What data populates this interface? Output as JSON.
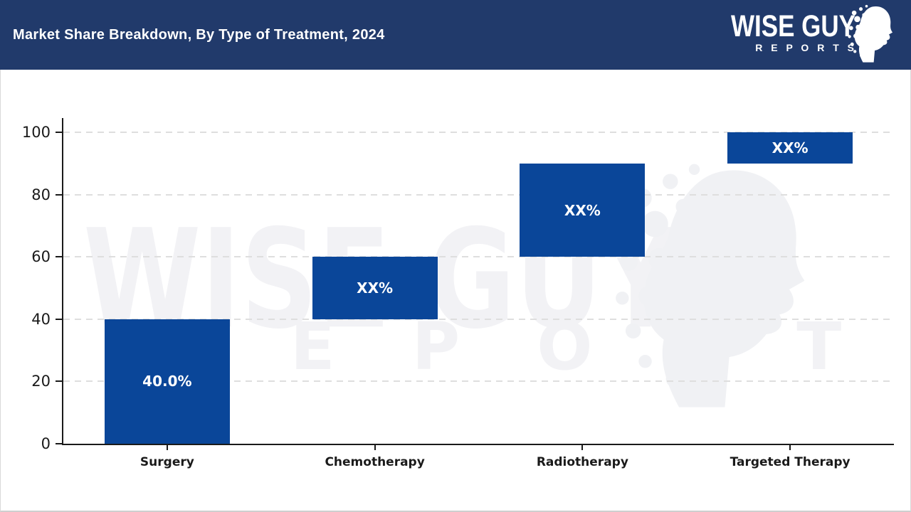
{
  "header": {
    "title": "Market Share Breakdown, By Type of Treatment, 2024",
    "logo": {
      "line1": "WISE GUY",
      "line2": "R E P O R T S"
    }
  },
  "watermark": {
    "line1": "WISE GUY",
    "line2": "R E P O R T S"
  },
  "chart_data": {
    "type": "bar",
    "subtype": "waterfall-stacked-range",
    "title": "Market Share Breakdown, By Type of Treatment, 2024",
    "categories": [
      "Surgery",
      "Chemotherapy",
      "Radiotherapy",
      "Targeted Therapy"
    ],
    "segments": [
      {
        "category": "Surgery",
        "start": 0,
        "end": 40,
        "value": 40,
        "label": "40.0%"
      },
      {
        "category": "Chemotherapy",
        "start": 40,
        "end": 60,
        "value": 20,
        "label": "XX%"
      },
      {
        "category": "Radiotherapy",
        "start": 60,
        "end": 90,
        "value": 30,
        "label": "XX%"
      },
      {
        "category": "Targeted Therapy",
        "start": 90,
        "end": 100,
        "value": 10,
        "label": "XX%"
      }
    ],
    "yticks": [
      0,
      20,
      40,
      60,
      80,
      100
    ],
    "ylim": [
      0,
      100
    ],
    "xlabel": "",
    "ylabel": "",
    "grid": "horizontal-dashed",
    "legend": "none"
  },
  "colors": {
    "header_navy": "#213a6b",
    "bar_blue": "#0a4699",
    "bar_label_white": "#ffffff",
    "axis_black": "#1a1a1a",
    "grid_gray": "#dedede",
    "watermark_gray": "#f2f2f5",
    "card_border_gray": "#d9d9d9"
  }
}
